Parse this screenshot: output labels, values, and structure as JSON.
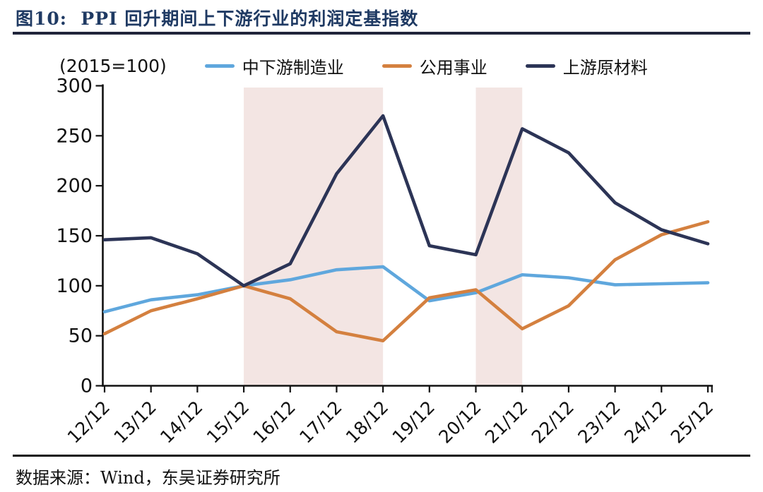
{
  "header": {
    "title": "图10:  PPI 回升期间上下游行业的利润定基指数"
  },
  "footer": {
    "source": "数据来源：Wind，东吴证券研究所"
  },
  "chart_data": {
    "type": "line",
    "title": "PPI 回升期间上下游行业的利润定基指数",
    "unit_label": "(2015=100)",
    "categories": [
      "12/12",
      "13/12",
      "14/12",
      "15/12",
      "16/12",
      "17/12",
      "18/12",
      "19/12",
      "20/12",
      "21/12",
      "22/12",
      "23/12",
      "24/12",
      "25/12"
    ],
    "series": [
      {
        "key": "midstream-downstream-manufacturing",
        "name": "中下游制造业",
        "color": "#5fa7dd",
        "values": [
          74,
          86,
          91,
          100,
          106,
          116,
          119,
          85,
          93,
          111,
          108,
          101,
          102,
          103
        ]
      },
      {
        "key": "utilities",
        "name": "公用事业",
        "color": "#d4803f",
        "values": [
          52,
          75,
          87,
          100,
          87,
          54,
          45,
          88,
          96,
          57,
          80,
          126,
          151,
          164
        ]
      },
      {
        "key": "upstream-raw-materials",
        "name": "上游原材料",
        "color": "#2c3456",
        "values": [
          146,
          148,
          132,
          100,
          122,
          212,
          270,
          140,
          131,
          257,
          233,
          183,
          156,
          142
        ]
      }
    ],
    "highlight_bands": [
      {
        "from": "15/12",
        "to": "18/12"
      },
      {
        "from": "20/12",
        "to": "21/12"
      }
    ],
    "band_color": "#f3e5e3",
    "axis_color": "#111111",
    "xlabel": "",
    "ylabel": "",
    "ylim": [
      0,
      300
    ],
    "ytick_step": 50,
    "legend_position": "top",
    "grid": false,
    "x_tick_rotation": 45
  }
}
